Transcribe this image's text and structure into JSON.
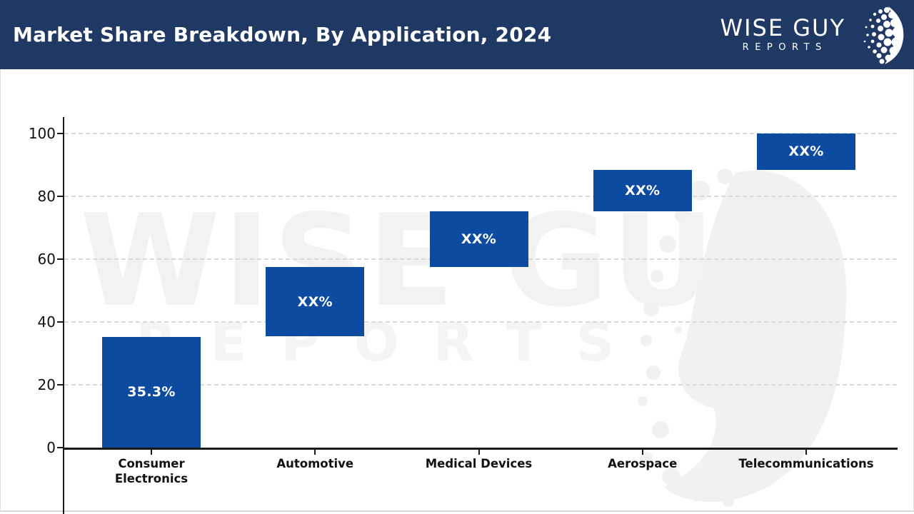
{
  "header": {
    "title": "Market Share Breakdown, By Application, 2024",
    "bg_color": "#1f3864",
    "logo": {
      "line1": "WISE GUY",
      "line2": "REPORTS"
    }
  },
  "watermark": {
    "line1": "WISE GUY",
    "line2": "REPORTS"
  },
  "chart_data": {
    "type": "bar",
    "subtype": "waterfall",
    "title": "Market Share Breakdown, By Application, 2024",
    "xlabel": "",
    "ylabel": "",
    "ylim": [
      0,
      100
    ],
    "yticks": [
      0,
      20,
      40,
      60,
      80,
      100
    ],
    "grid": "horizontal-dashed",
    "legend": "none",
    "bar_color": "#0d4ba1",
    "bar_label_color": "#ffffff",
    "grid_color": "#d9d9d9",
    "axis_color": "#1a1a1a",
    "categories": [
      "Consumer Electronics",
      "Automotive",
      "Medical Devices",
      "Aerospace",
      "Telecommunications"
    ],
    "segments": [
      {
        "category": "Consumer Electronics",
        "start": 0,
        "end": 35.3,
        "label": "35.3%"
      },
      {
        "category": "Automotive",
        "start": 35.3,
        "end": 57.5,
        "label": "XX%"
      },
      {
        "category": "Medical Devices",
        "start": 57.5,
        "end": 75.2,
        "label": "XX%"
      },
      {
        "category": "Aerospace",
        "start": 75.2,
        "end": 88.3,
        "label": "XX%"
      },
      {
        "category": "Telecommunications",
        "start": 88.3,
        "end": 100,
        "label": "XX%"
      }
    ]
  }
}
